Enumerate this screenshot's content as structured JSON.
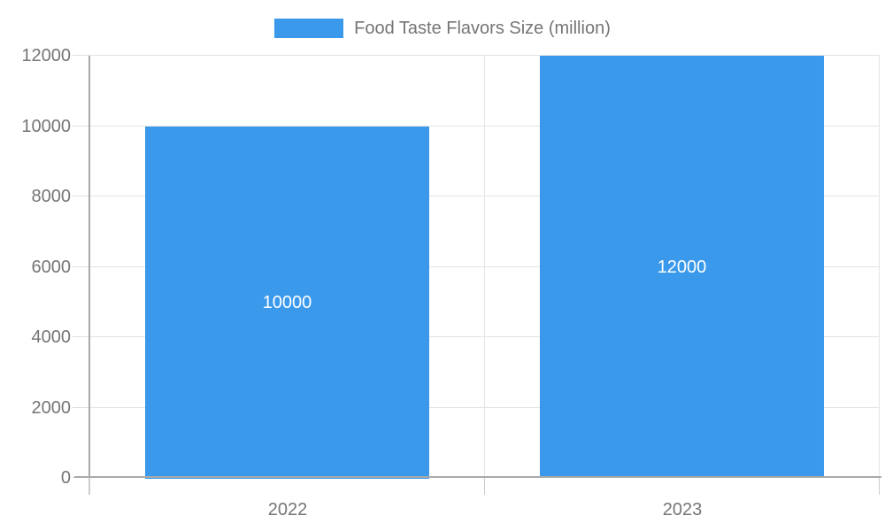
{
  "chart_data": {
    "type": "bar",
    "categories": [
      "2022",
      "2023"
    ],
    "series": [
      {
        "name": "Food Taste Flavors Size (million)",
        "values": [
          10000,
          12000
        ],
        "color": "#3B99EC"
      }
    ],
    "bar_value_labels": [
      "10000",
      "12000"
    ],
    "title": "",
    "xlabel": "",
    "ylabel": "",
    "ylim": [
      0,
      12000
    ],
    "yticks": [
      0,
      2000,
      4000,
      6000,
      8000,
      10000,
      12000
    ],
    "grid": true,
    "legend": {
      "label": "Food Taste Flavors Size (million)",
      "position": "top",
      "swatch_color": "#3B99EC"
    },
    "colors": {
      "bar": "#3B99EC",
      "axis_text": "#757575",
      "bar_label_text": "#ffffff",
      "gridline": "#e4e4e4",
      "axis_line": "#a9a9a9",
      "outer_tick": "#e0e0e0",
      "below_axis_tick": "#cccccc",
      "background": "#ffffff"
    }
  }
}
